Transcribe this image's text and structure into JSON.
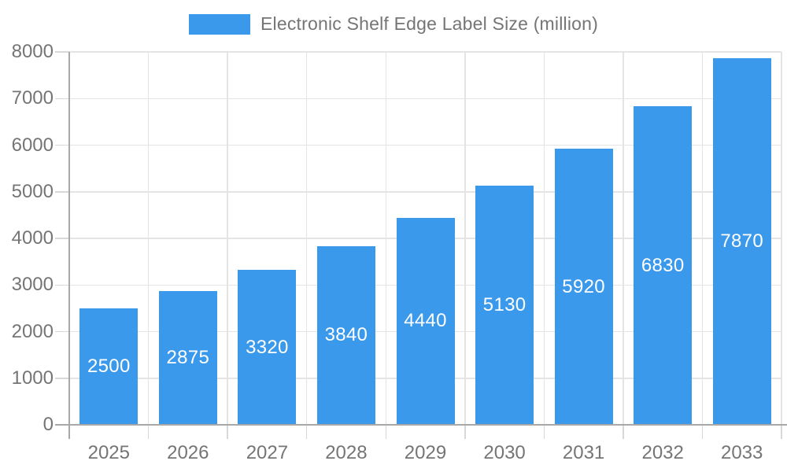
{
  "chart_data": {
    "type": "bar",
    "title": "Electronic Shelf Edge Label Size (million)",
    "legend": {
      "label": "Electronic Shelf Edge Label Size (million)",
      "position": "top-center"
    },
    "categories": [
      "2025",
      "2026",
      "2027",
      "2028",
      "2029",
      "2030",
      "2031",
      "2032",
      "2033"
    ],
    "values": [
      2500,
      2875,
      3320,
      3840,
      4440,
      5130,
      5920,
      6830,
      7870
    ],
    "xlabel": "",
    "ylabel": "",
    "ylim": [
      0,
      8000
    ],
    "ytick_step": 1000,
    "yticks": [
      0,
      1000,
      2000,
      3000,
      4000,
      5000,
      6000,
      7000,
      8000
    ],
    "grid": true,
    "bar_value_labels": "inside-center",
    "colors": {
      "bar": "#3B99EC",
      "bar_label": "#FFFFFF",
      "axis_text": "#757575",
      "grid_line": "#E4E4E4",
      "tick_line": "#D8D8D8",
      "axis_line": "#A8A8A8",
      "background": "#FFFFFF"
    }
  }
}
